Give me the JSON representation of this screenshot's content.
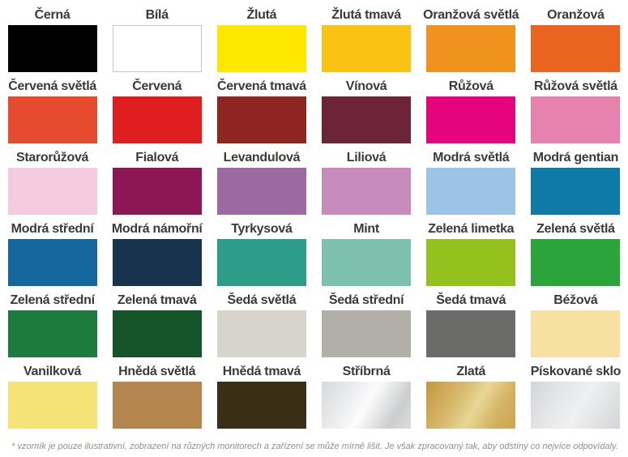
{
  "page": {
    "background": "#ffffff",
    "label_color": "#3a3a3a",
    "footnote_color": "#8f8f8f"
  },
  "palette": {
    "columns": 6,
    "swatches": [
      {
        "name": "Černá",
        "color": "#000000"
      },
      {
        "name": "Bílá",
        "color": "#ffffff",
        "border": "#c6c6c6"
      },
      {
        "name": "Žlutá",
        "color": "#ffe800"
      },
      {
        "name": "Žlutá tmavá",
        "color": "#fac313"
      },
      {
        "name": "Oranžová světlá",
        "color": "#f0921e"
      },
      {
        "name": "Oranžová",
        "color": "#e8641f"
      },
      {
        "name": "Červená světlá",
        "color": "#e64b2f"
      },
      {
        "name": "Červená",
        "color": "#e01e1f"
      },
      {
        "name": "Červená tmavá",
        "color": "#8e2521"
      },
      {
        "name": "Vínová",
        "color": "#6d2338"
      },
      {
        "name": "Růžová",
        "color": "#e5047e"
      },
      {
        "name": "Růžová světlá",
        "color": "#e782ae"
      },
      {
        "name": "Starorůžová",
        "color": "#f5cbe0"
      },
      {
        "name": "Fialová",
        "color": "#8d1656"
      },
      {
        "name": "Levandulová",
        "color": "#9c6aa0"
      },
      {
        "name": "Liliová",
        "color": "#c88cbc"
      },
      {
        "name": "Modrá světlá",
        "color": "#9cc4e7"
      },
      {
        "name": "Modrá gentian",
        "color": "#0e7aa6"
      },
      {
        "name": "Modrá střední",
        "color": "#15689e"
      },
      {
        "name": "Modrá námořní",
        "color": "#17334e"
      },
      {
        "name": "Tyrkysová",
        "color": "#2d9c88"
      },
      {
        "name": "Mint",
        "color": "#7cc1ad"
      },
      {
        "name": "Zelená limetka",
        "color": "#95c11f"
      },
      {
        "name": "Zelená světlá",
        "color": "#2ba43c"
      },
      {
        "name": "Zelená střední",
        "color": "#1e7b3e"
      },
      {
        "name": "Zelená tmavá",
        "color": "#155429"
      },
      {
        "name": "Šedá světlá",
        "color": "#d7d4cc"
      },
      {
        "name": "Šedá střední",
        "color": "#b2afa8"
      },
      {
        "name": "Šedá tmavá",
        "color": "#6b6b69"
      },
      {
        "name": "Béžová",
        "color": "#f8e0a2"
      },
      {
        "name": "Vanilková",
        "color": "#f6e378"
      },
      {
        "name": "Hnědá světlá",
        "color": "#b58550"
      },
      {
        "name": "Hnědá tmavá",
        "color": "#3b2e16"
      },
      {
        "name": "Stříbrná",
        "gradient": {
          "angle": "120deg",
          "stops": [
            "#d6d8da 0%",
            "#e9ebec 28%",
            "#fcfcfc 50%",
            "#cbcdcf 80%",
            "#dadcde 100%"
          ]
        }
      },
      {
        "name": "Zlatá",
        "gradient": {
          "angle": "120deg",
          "stops": [
            "#c3963e 0%",
            "#d9bd72 38%",
            "#e9d795 55%",
            "#d3b264 78%",
            "#cda74f 100%"
          ]
        }
      },
      {
        "name": "Pískované sklo",
        "gradient": {
          "angle": "120deg",
          "stops": [
            "#d3d6d8 0%",
            "#e6e8e9 35%",
            "#eff0f1 55%",
            "#d2d5d7 100%"
          ]
        }
      }
    ]
  },
  "footnote": "* vzorník je pouze ilustrativní, zobrazení na různých monitorech a zařízení se může mírně lišit. Je však zpracovaný tak, aby odstíny co nejvíce odpovídaly."
}
